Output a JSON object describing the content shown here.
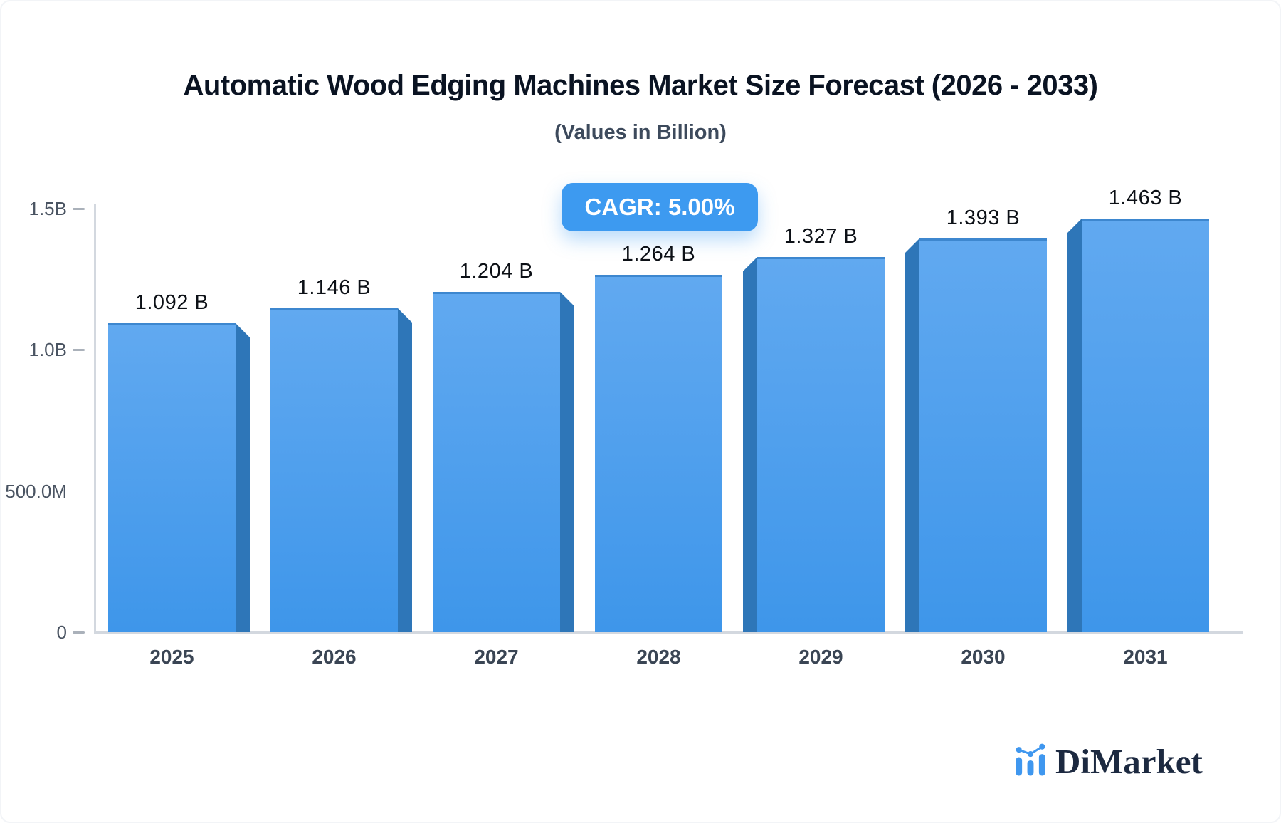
{
  "header": {
    "title": "Automatic Wood Edging Machines Market Size Forecast (2026 - 2033)",
    "subtitle": "(Values in Billion)",
    "cagr_badge": "CAGR: 5.00%"
  },
  "brand": {
    "name": "DiMarket",
    "icon": "bar-chart-trend-icon"
  },
  "colors": {
    "badge_bg": "#3d9af0",
    "bar_top": "#61a9f0",
    "bar_bottom": "#3e96ea",
    "bar_side": "#2e76b8",
    "bar_stroke": "#3d87cf",
    "axis": "#d3d8df",
    "tick": "#aab1ba",
    "brand_blue": "#3f97ef",
    "brand_navy": "#1c2940"
  },
  "chart_data": {
    "type": "bar",
    "title": "Automatic Wood Edging Machines Market Size Forecast (2026 - 2033)",
    "subtitle": "(Values in Billion)",
    "categories": [
      "2025",
      "2026",
      "2027",
      "2028",
      "2029",
      "2030",
      "2031"
    ],
    "values": [
      1.092,
      1.146,
      1.204,
      1.264,
      1.327,
      1.393,
      1.463
    ],
    "bar_labels": [
      "1.092 B",
      "1.146 B",
      "1.204 B",
      "1.264 B",
      "1.327 B",
      "1.393 B",
      "1.463 B"
    ],
    "unit": "Billion",
    "cagr": "5.00%",
    "y_ticks": [
      {
        "label": "1.5B",
        "value": 1.5,
        "dash": true
      },
      {
        "label": "1.0B",
        "value": 1.0,
        "dash": true
      },
      {
        "label": "500.0M",
        "value": 0.5,
        "dash": false
      },
      {
        "label": "0",
        "value": 0,
        "dash": true
      }
    ],
    "ylim": [
      0,
      1.5
    ],
    "grid": false,
    "legend": false
  }
}
